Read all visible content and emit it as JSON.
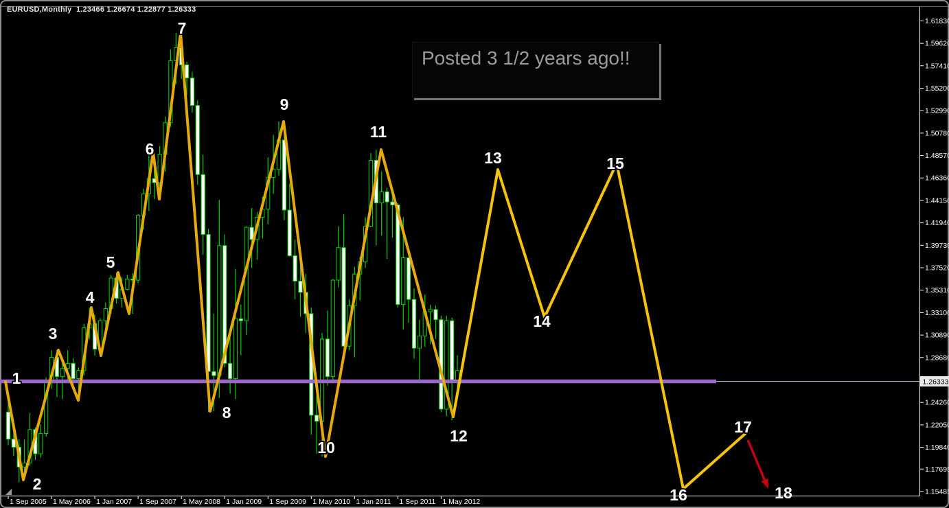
{
  "header": {
    "title": "EURUSD,Monthly  1.23466 1.26674 1.22877 1.26333"
  },
  "annotation": {
    "text": "Posted 3 1/2 years ago!!"
  },
  "colors": {
    "background": "#000000",
    "candle_outline": "#00d400",
    "bull_body": "#000000",
    "bear_body": "#ffffff",
    "zigzag_history": "#e6a90e",
    "zigzag_projection": "#f5c30b",
    "horizontal_line": "#9a67c9",
    "current_price_line": "#9fb6c9",
    "projection_arrow": "#c40011",
    "axis_text": "#ffffff",
    "frame_line": "#ffffff",
    "top_border_line": "#5f5f5f",
    "current_tag_bg": "#e8e8e8",
    "scroll_marker": "#9a9a9a"
  },
  "price_axis": {
    "labels": [
      "1.61830",
      "1.59620",
      "1.57410",
      "1.55200",
      "1.52990",
      "1.50780",
      "1.48570",
      "1.46360",
      "1.44150",
      "1.41940",
      "1.39730",
      "1.37520",
      "1.35310",
      "1.33100",
      "1.30890",
      "1.28680",
      "1.24260",
      "1.22050",
      "1.19840",
      "1.17695",
      "1.15485"
    ],
    "current_tag": "1.26333"
  },
  "time_axis": {
    "labels": [
      "1 Sep 2005",
      "1 May 2006",
      "1 Jan 2007",
      "1 Sep 2007",
      "1 May 2008",
      "1 Jan 2009",
      "1 Sep 2009",
      "1 May 2010",
      "1 Jan 2011",
      "1 Sep 2011",
      "1 May 2012"
    ]
  },
  "chart_data": {
    "type": "candlestick",
    "symbol": "EURUSD",
    "timeframe": "Monthly",
    "ohlc_display": {
      "open": "1.23466",
      "high": "1.26674",
      "low": "1.22877",
      "close": "1.26333"
    },
    "ylim": [
      1.148,
      1.632
    ],
    "grid": false,
    "horizontal_line": {
      "price": 1.26333,
      "x_from_bar": -1.52,
      "x_to_bar": 130.84,
      "thickness": 5.5
    },
    "candles": {
      "columns": [
        "month",
        "open",
        "high",
        "low",
        "close"
      ],
      "rows": [
        [
          "Sep 2005",
          1.2331,
          1.243,
          1.2005,
          1.2064
        ],
        [
          "Oct 2005",
          1.2064,
          1.218,
          1.19,
          1.1985
        ],
        [
          "Nov 2005",
          1.1985,
          1.2063,
          1.164,
          1.179
        ],
        [
          "Dec 2005",
          1.179,
          1.206,
          1.1665,
          1.183
        ],
        [
          "Jan 2006",
          1.183,
          1.2323,
          1.18,
          1.2158
        ],
        [
          "Feb 2006",
          1.2158,
          1.218,
          1.186,
          1.192
        ],
        [
          "Mar 2006",
          1.192,
          1.221,
          1.188,
          1.212
        ],
        [
          "Apr 2006",
          1.212,
          1.2673,
          1.209,
          1.263
        ],
        [
          "May 2006",
          1.263,
          1.294,
          1.256,
          1.287
        ],
        [
          "Jun 2006",
          1.287,
          1.2941,
          1.248,
          1.268
        ],
        [
          "Jul 2006",
          1.268,
          1.2815,
          1.2458,
          1.276
        ],
        [
          "Aug 2006",
          1.276,
          1.294,
          1.264,
          1.281
        ],
        [
          "Sep 2006",
          1.281,
          1.286,
          1.259,
          1.266
        ],
        [
          "Oct 2006",
          1.266,
          1.277,
          1.2447,
          1.274
        ],
        [
          "Nov 2006",
          1.274,
          1.32,
          1.269,
          1.316
        ],
        [
          "Dec 2006",
          1.316,
          1.336,
          1.305,
          1.32
        ],
        [
          "Jan 2007",
          1.32,
          1.329,
          1.2887,
          1.295
        ],
        [
          "Feb 2007",
          1.295,
          1.3255,
          1.291,
          1.323
        ],
        [
          "Mar 2007",
          1.323,
          1.341,
          1.31,
          1.335
        ],
        [
          "Apr 2007",
          1.335,
          1.368,
          1.33,
          1.365
        ],
        [
          "May 2007",
          1.365,
          1.3705,
          1.34,
          1.345
        ],
        [
          "Jun 2007",
          1.345,
          1.366,
          1.336,
          1.354
        ],
        [
          "Jul 2007",
          1.354,
          1.368,
          1.353,
          1.364
        ],
        [
          "Aug 2007",
          1.364,
          1.37,
          1.3299,
          1.363
        ],
        [
          "Sep 2007",
          1.363,
          1.428,
          1.36,
          1.427
        ],
        [
          "Oct 2007",
          1.427,
          1.453,
          1.413,
          1.448
        ],
        [
          "Nov 2007",
          1.448,
          1.4888,
          1.431,
          1.463
        ],
        [
          "Dec 2007",
          1.463,
          1.476,
          1.4428,
          1.459
        ],
        [
          "Jan 2008",
          1.459,
          1.495,
          1.444,
          1.487
        ],
        [
          "Feb 2008",
          1.487,
          1.524,
          1.47,
          1.518
        ],
        [
          "Mar 2008",
          1.518,
          1.59,
          1.514,
          1.579
        ],
        [
          "Apr 2008",
          1.579,
          1.6064,
          1.556,
          1.592
        ],
        [
          "May 2008",
          1.592,
          1.5985,
          1.561,
          1.575
        ],
        [
          "Jun 2008",
          1.575,
          1.578,
          1.545,
          1.562
        ],
        [
          "Jul 2008",
          1.562,
          1.568,
          1.528,
          1.535
        ],
        [
          "Aug 2008",
          1.535,
          1.54,
          1.457,
          1.467
        ],
        [
          "Sep 2008",
          1.467,
          1.4866,
          1.388,
          1.408
        ],
        [
          "Oct 2008",
          1.408,
          1.4135,
          1.233,
          1.273
        ],
        [
          "Nov 2008",
          1.273,
          1.33,
          1.2339,
          1.269
        ],
        [
          "Dec 2008",
          1.269,
          1.442,
          1.247,
          1.397
        ],
        [
          "Jan 2009",
          1.397,
          1.408,
          1.277,
          1.281
        ],
        [
          "Feb 2009",
          1.281,
          1.3095,
          1.2513,
          1.266
        ],
        [
          "Mar 2009",
          1.266,
          1.374,
          1.246,
          1.325
        ],
        [
          "Apr 2009",
          1.325,
          1.339,
          1.289,
          1.323
        ],
        [
          "May 2009",
          1.323,
          1.416,
          1.309,
          1.415
        ],
        [
          "Jun 2009",
          1.415,
          1.434,
          1.375,
          1.403
        ],
        [
          "Jul 2009",
          1.403,
          1.43,
          1.383,
          1.425
        ],
        [
          "Aug 2009",
          1.425,
          1.445,
          1.404,
          1.433
        ],
        [
          "Sep 2009",
          1.433,
          1.484,
          1.418,
          1.464
        ],
        [
          "Oct 2009",
          1.464,
          1.506,
          1.448,
          1.472
        ],
        [
          "Nov 2009",
          1.472,
          1.5192,
          1.466,
          1.501
        ],
        [
          "Dec 2009",
          1.501,
          1.514,
          1.422,
          1.432
        ],
        [
          "Jan 2010",
          1.432,
          1.458,
          1.386,
          1.387
        ],
        [
          "Feb 2010",
          1.387,
          1.403,
          1.344,
          1.362
        ],
        [
          "Mar 2010",
          1.362,
          1.382,
          1.327,
          1.351
        ],
        [
          "Apr 2010",
          1.351,
          1.369,
          1.311,
          1.33
        ],
        [
          "May 2010",
          1.33,
          1.336,
          1.211,
          1.23
        ],
        [
          "Jun 2010",
          1.23,
          1.249,
          1.192,
          1.224
        ],
        [
          "Jul 2010",
          1.224,
          1.311,
          1.1893,
          1.305
        ],
        [
          "Aug 2010",
          1.305,
          1.333,
          1.259,
          1.268
        ],
        [
          "Sep 2010",
          1.268,
          1.364,
          1.264,
          1.363
        ],
        [
          "Oct 2010",
          1.363,
          1.416,
          1.356,
          1.395
        ],
        [
          "Nov 2010",
          1.395,
          1.428,
          1.297,
          1.298
        ],
        [
          "Dec 2010",
          1.298,
          1.344,
          1.294,
          1.338
        ],
        [
          "Jan 2011",
          1.338,
          1.376,
          1.287,
          1.369
        ],
        [
          "Feb 2011",
          1.369,
          1.386,
          1.343,
          1.381
        ],
        [
          "Mar 2011",
          1.381,
          1.425,
          1.375,
          1.416
        ],
        [
          "Apr 2011",
          1.416,
          1.488,
          1.415,
          1.481
        ],
        [
          "May 2011",
          1.481,
          1.4915,
          1.397,
          1.439
        ],
        [
          "Jun 2011",
          1.439,
          1.47,
          1.407,
          1.45
        ],
        [
          "Jul 2011",
          1.45,
          1.454,
          1.384,
          1.44
        ],
        [
          "Aug 2011",
          1.44,
          1.452,
          1.405,
          1.437
        ],
        [
          "Sep 2011",
          1.437,
          1.439,
          1.336,
          1.339
        ],
        [
          "Oct 2011",
          1.339,
          1.425,
          1.3145,
          1.385
        ],
        [
          "Nov 2011",
          1.385,
          1.386,
          1.321,
          1.344
        ],
        [
          "Dec 2011",
          1.344,
          1.355,
          1.2858,
          1.296
        ],
        [
          "Jan 2012",
          1.296,
          1.324,
          1.2624,
          1.308
        ],
        [
          "Feb 2012",
          1.308,
          1.3487,
          1.2975,
          1.332
        ],
        [
          "Mar 2012",
          1.332,
          1.3386,
          1.3,
          1.334
        ],
        [
          "Apr 2012",
          1.334,
          1.338,
          1.305,
          1.324
        ],
        [
          "May 2012",
          1.324,
          1.328,
          1.233,
          1.236
        ],
        [
          "Jun 2012",
          1.236,
          1.328,
          1.229,
          1.323
        ],
        [
          "Jul 2012",
          1.323,
          1.326,
          1.225,
          1.262
        ],
        [
          "Aug 2012",
          1.262,
          1.289,
          1.246,
          1.274
        ]
      ]
    },
    "zigzag": {
      "columns": [
        "label",
        "bar_index",
        "price",
        "label_dx",
        "label_dy"
      ],
      "rows": [
        [
          "1",
          -0.51,
          1.263,
          16,
          -5
        ],
        [
          "2",
          2.79,
          1.1663,
          20,
          6
        ],
        [
          "3",
          9.26,
          1.2941,
          -8,
          -24
        ],
        [
          null,
          12.94,
          1.2447,
          0,
          0
        ],
        [
          "4",
          15.36,
          1.336,
          -2,
          -15
        ],
        [
          null,
          17.13,
          1.2887,
          0,
          0
        ],
        [
          "5",
          20.3,
          1.3705,
          -11,
          -15
        ],
        [
          null,
          22.34,
          1.3299,
          0,
          0
        ],
        [
          "6",
          26.78,
          1.4888,
          -5,
          -5
        ],
        [
          null,
          27.92,
          1.4428,
          0,
          0
        ],
        [
          "7",
          31.85,
          1.6064,
          2,
          -7
        ],
        [
          "8",
          37.31,
          1.2339,
          24,
          2
        ],
        [
          "9",
          50.89,
          1.5192,
          1,
          -25
        ],
        [
          "10",
          58.63,
          1.1893,
          1,
          -13
        ],
        [
          "11",
          68.91,
          1.4915,
          -4,
          -26
        ],
        [
          "12",
          82.23,
          1.2285,
          8,
          28
        ],
        [
          "13",
          90.48,
          1.4719,
          -7,
          -17
        ],
        [
          "14",
          99.11,
          1.3265,
          -4,
          6
        ],
        [
          "15",
          112.44,
          1.478,
          -2,
          0
        ],
        [
          "16",
          124.75,
          1.1575,
          -7,
          9
        ],
        [
          "17",
          136.17,
          1.2116,
          -3,
          -10
        ]
      ],
      "projection_starts_at_label": "12"
    },
    "projection_arrow": {
      "from": {
        "bar": 136.68,
        "price": 1.2055
      },
      "to": {
        "bar": 140.48,
        "price": 1.1575
      },
      "label": "18",
      "label_dx": 22,
      "label_dy": 6
    }
  }
}
